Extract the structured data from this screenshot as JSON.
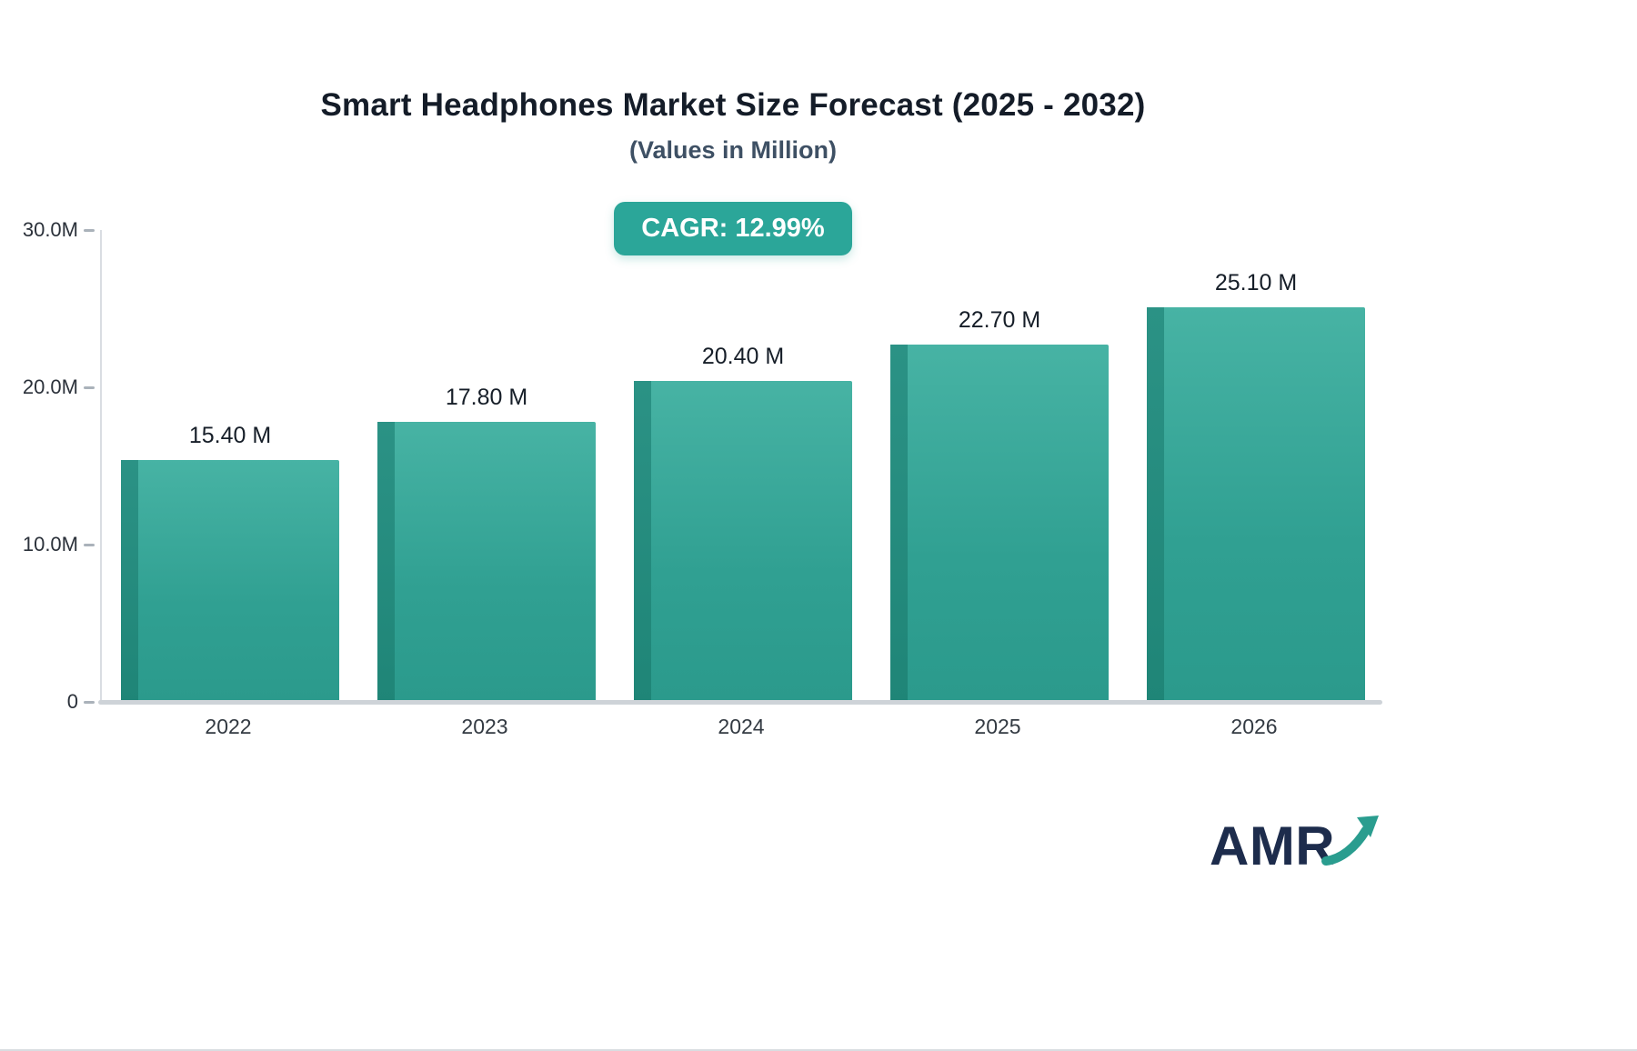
{
  "chart_data": {
    "type": "bar",
    "title": "Smart Headphones Market Size Forecast (2025 - 2032)",
    "subtitle": "(Values in Million)",
    "badge_label": "CAGR: 12.99%",
    "categories": [
      "2022",
      "2023",
      "2024",
      "2025",
      "2026"
    ],
    "values": [
      15.4,
      17.8,
      20.4,
      22.7,
      25.1
    ],
    "value_labels": [
      "15.40 M",
      "17.80 M",
      "20.40 M",
      "22.70 M",
      "25.10 M"
    ],
    "xlabel": "",
    "ylabel": "",
    "ylim": [
      0,
      30
    ],
    "yticks": [
      "30.0M",
      "20.0M",
      "10.0M",
      "0"
    ],
    "ytick_values": [
      30,
      20,
      10,
      0
    ],
    "grid": false,
    "legend": false,
    "bar_color_top": "#47b3a4",
    "bar_color_bottom": "#2b9a8c",
    "bar_side_color": "#1f8577",
    "badge_color": "#2ba699"
  },
  "branding": {
    "logo_text": "AMR",
    "logo_color": "#1d2c4c",
    "arrow_color": "#2a9d8f"
  }
}
